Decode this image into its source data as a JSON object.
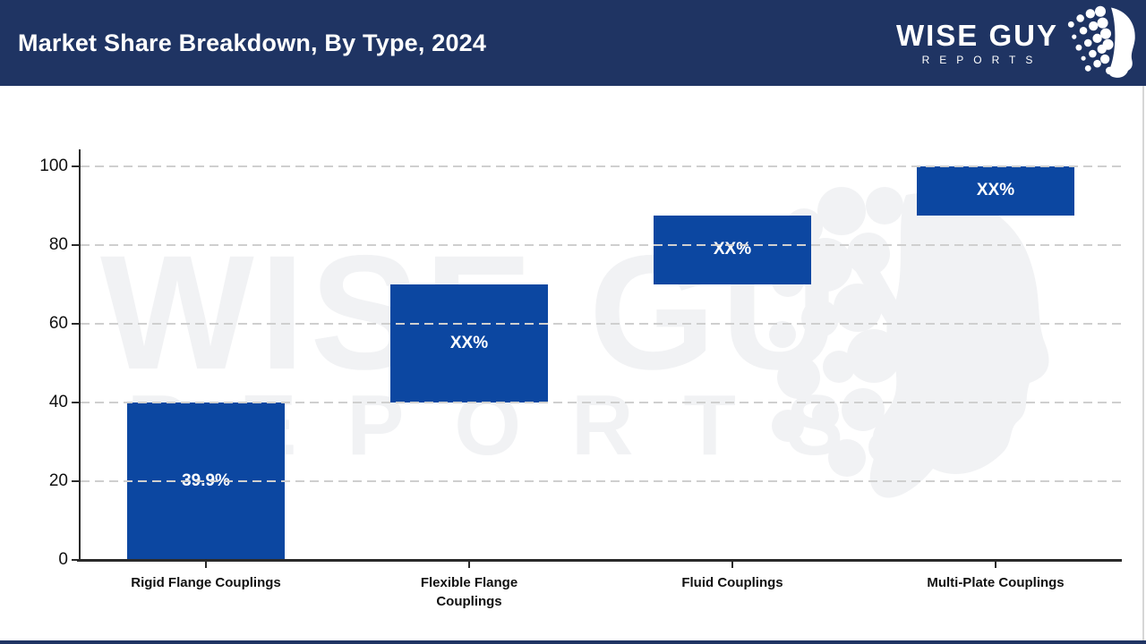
{
  "header": {
    "title": "Market Share Breakdown, By Type, 2024"
  },
  "logo": {
    "line1": "WISE GUY",
    "line2": "REPORTS"
  },
  "watermark": {
    "line1": "WISE GUY",
    "line2": "REPORTS"
  },
  "colors": {
    "header_bg": "#1f3463",
    "bar": "#0c47a1",
    "grid": "#cfcfcf",
    "axis": "#2a2a2a",
    "watermark": "#f1f2f4"
  },
  "chart_data": {
    "type": "bar",
    "subtype": "waterfall",
    "title": "Market Share Breakdown, By Type, 2024",
    "categories": [
      "Rigid Flange Couplings",
      "Flexible Flange Couplings",
      "Fluid Couplings",
      "Multi-Plate Couplings"
    ],
    "segments": [
      {
        "category": "Rigid Flange Couplings",
        "start": 0,
        "end": 39.9,
        "value": 39.9,
        "label": "39.9%"
      },
      {
        "category": "Flexible Flange Couplings",
        "start": 39.9,
        "end": 69.9,
        "value": 30.0,
        "label": "XX%"
      },
      {
        "category": "Fluid Couplings",
        "start": 69.9,
        "end": 87.6,
        "value": 17.7,
        "label": "XX%"
      },
      {
        "category": "Multi-Plate Couplings",
        "start": 87.6,
        "end": 100,
        "value": 12.4,
        "label": "XX%"
      }
    ],
    "xlabel": "",
    "ylabel": "",
    "yticks": [
      0,
      20,
      40,
      60,
      80,
      100
    ],
    "ylim": [
      0,
      104
    ],
    "grid": "dashed-horizontal-on-top",
    "legend": "none",
    "bar_color": "#0c47a1",
    "bar_label_color": "#ffffff"
  }
}
